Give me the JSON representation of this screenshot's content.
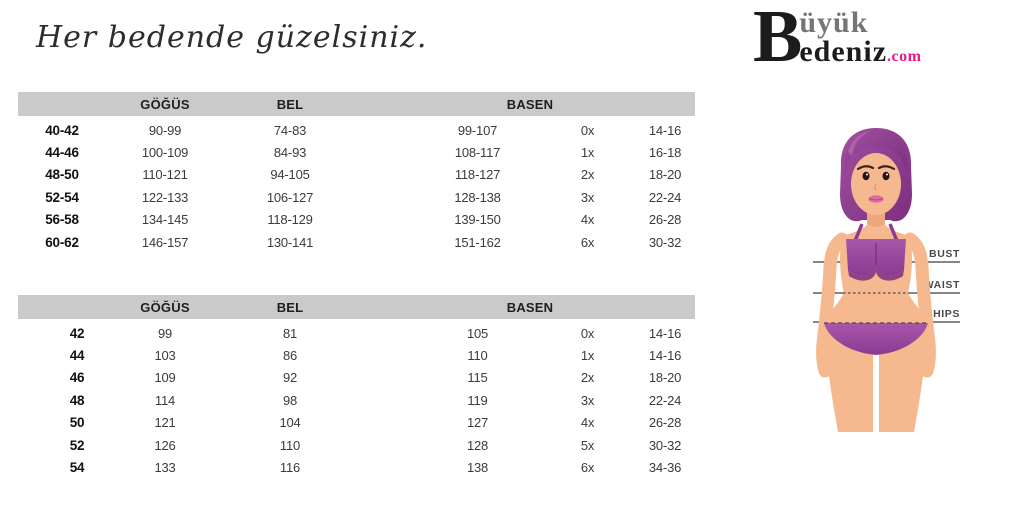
{
  "title": "Her bedende güzelsiniz.",
  "logo": {
    "initial": "B",
    "word_top": "üyük",
    "word_bottom": "edeniz",
    "tld": ".com"
  },
  "size_tables": [
    {
      "headers": {
        "gogus": "GÖĞÜS",
        "bel": "BEL",
        "basen": "BASEN"
      },
      "rows": [
        [
          "40-42",
          "90-99",
          "74-83",
          "99-107",
          "0x",
          "14-16"
        ],
        [
          "44-46",
          "100-109",
          "84-93",
          "108-117",
          "1x",
          "16-18"
        ],
        [
          "48-50",
          "110-121",
          "94-105",
          "118-127",
          "2x",
          "18-20"
        ],
        [
          "52-54",
          "122-133",
          "106-127",
          "128-138",
          "3x",
          "22-24"
        ],
        [
          "56-58",
          "134-145",
          "118-129",
          "139-150",
          "4x",
          "26-28"
        ],
        [
          "60-62",
          "146-157",
          "130-141",
          "151-162",
          "6x",
          "30-32"
        ]
      ]
    },
    {
      "headers": {
        "gogus": "GÖĞÜS",
        "bel": "BEL",
        "basen": "BASEN"
      },
      "rows": [
        [
          "42",
          "99",
          "81",
          "105",
          "0x",
          "14-16"
        ],
        [
          "44",
          "103",
          "86",
          "110",
          "1x",
          "14-16"
        ],
        [
          "46",
          "109",
          "92",
          "115",
          "2x",
          "18-20"
        ],
        [
          "48",
          "114",
          "98",
          "119",
          "3x",
          "22-24"
        ],
        [
          "50",
          "121",
          "104",
          "127",
          "4x",
          "26-28"
        ],
        [
          "52",
          "126",
          "110",
          "128",
          "5x",
          "30-32"
        ],
        [
          "54",
          "133",
          "116",
          "138",
          "6x",
          "34-36"
        ]
      ]
    }
  ],
  "figure": {
    "labels": {
      "bust": "BUST",
      "waist": "WAIST",
      "hips": "HIPS"
    }
  },
  "colors": {
    "header_bar": "#cacaca",
    "logo_gray": "#757575",
    "logo_pink": "#e9188c",
    "hair": "#8e3b90",
    "skin": "#f6b88f",
    "underwear": "#9a4aa0",
    "measure_label": "#4a4a4a"
  }
}
